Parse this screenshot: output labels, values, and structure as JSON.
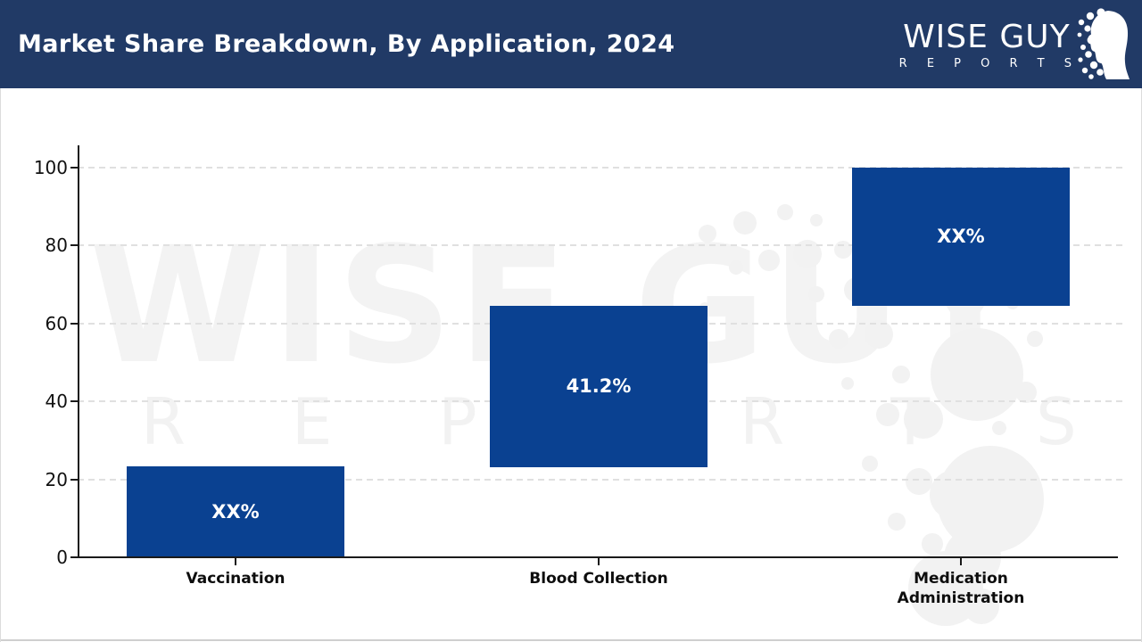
{
  "header": {
    "title": "Market Share Breakdown, By Application, 2024",
    "logo": {
      "name": "WISE GUY",
      "sub": "R E P O R T S"
    }
  },
  "watermark": {
    "name": "WISE GUY",
    "sub": "R E P O R T S"
  },
  "chart_data": {
    "type": "bar",
    "subtype": "floating-waterfall",
    "title": "Market Share Breakdown, By Application, 2024",
    "categories": [
      "Vaccination",
      "Blood Collection",
      "Medication Administration"
    ],
    "bars": [
      {
        "category": "Vaccination",
        "start": 0,
        "end": 23.3,
        "value_label": "XX%"
      },
      {
        "category": "Blood Collection",
        "start": 23.2,
        "end": 64.4,
        "value_label": "41.2%"
      },
      {
        "category": "Medication Administration",
        "start": 64.5,
        "end": 100,
        "value_label": "XX%"
      }
    ],
    "yticks": [
      0,
      20,
      40,
      60,
      80,
      100
    ],
    "ylim": [
      0,
      105.5
    ],
    "xlabel": "",
    "ylabel": "",
    "grid": "dashed-horizontal",
    "legend": "none"
  },
  "colors": {
    "header_bg": "#213a66",
    "bar": "#0a4191",
    "bar_label": "#ffffff",
    "grid": "#e0e0e0",
    "axis": "#1a1a1a"
  }
}
